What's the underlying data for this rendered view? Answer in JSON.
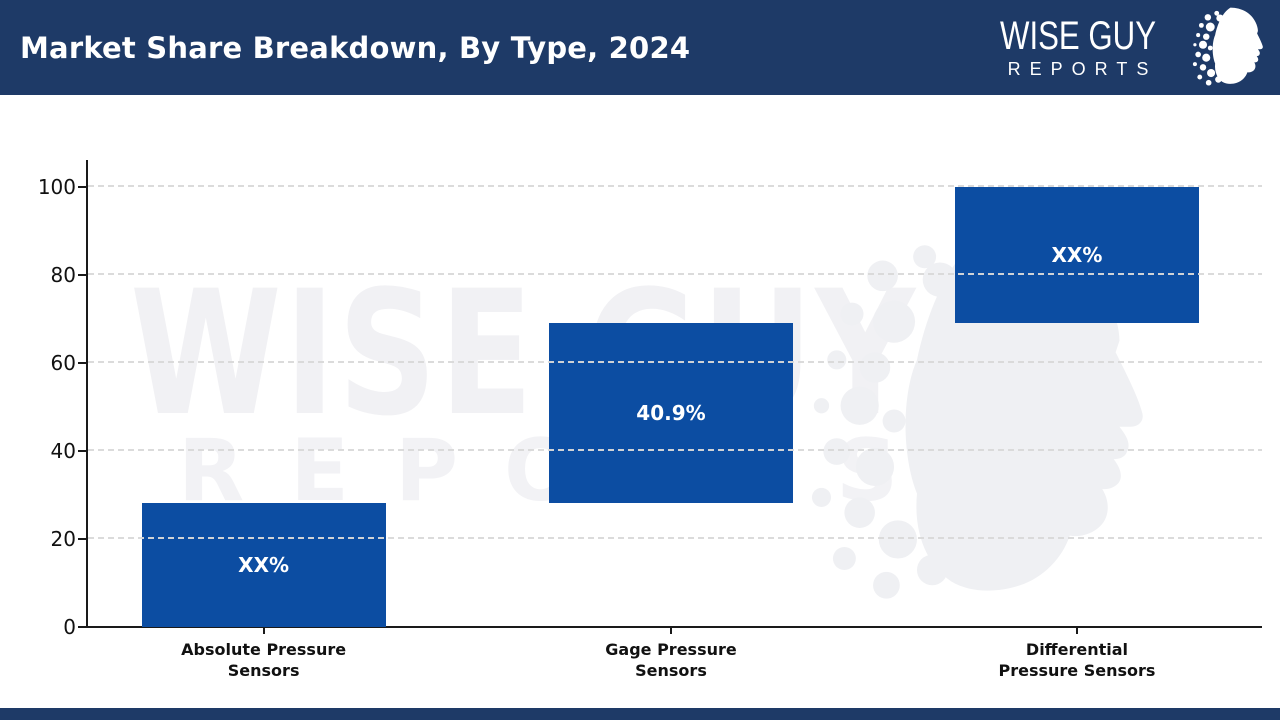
{
  "header": {
    "title": "Market Share Breakdown, By Type, 2024",
    "logo": {
      "line1": "WISE GUY",
      "line2": "REPORTS"
    }
  },
  "watermark": {
    "line1": "WISE GUY",
    "line2": "REPORTS"
  },
  "chart_data": {
    "type": "bar",
    "subtype": "floating-waterfall",
    "title": "Market Share Breakdown, By Type, 2024",
    "categories": [
      [
        "Absolute Pressure",
        "Sensors"
      ],
      [
        "Gage Pressure",
        "Sensors"
      ],
      [
        "Differential",
        "Pressure Sensors"
      ]
    ],
    "bars": [
      {
        "label": "XX%",
        "start": 0,
        "end": 28.2,
        "value": 28.2
      },
      {
        "label": "40.9%",
        "start": 28.2,
        "end": 69.1,
        "value": 40.9
      },
      {
        "label": "XX%",
        "start": 69.1,
        "end": 100,
        "value": 30.9
      }
    ],
    "xlabel": "",
    "ylabel": "",
    "yticks": [
      0,
      20,
      40,
      60,
      80,
      100
    ],
    "ylim": [
      0,
      106
    ],
    "grid": true,
    "grid_style": "dashed",
    "legend": false,
    "colors": {
      "bar": "#0c4da2",
      "bar_label": "#ffffff",
      "header_bg": "#1e3a67",
      "axis": "#1a1a1a",
      "grid": "#d9d9d9"
    }
  }
}
